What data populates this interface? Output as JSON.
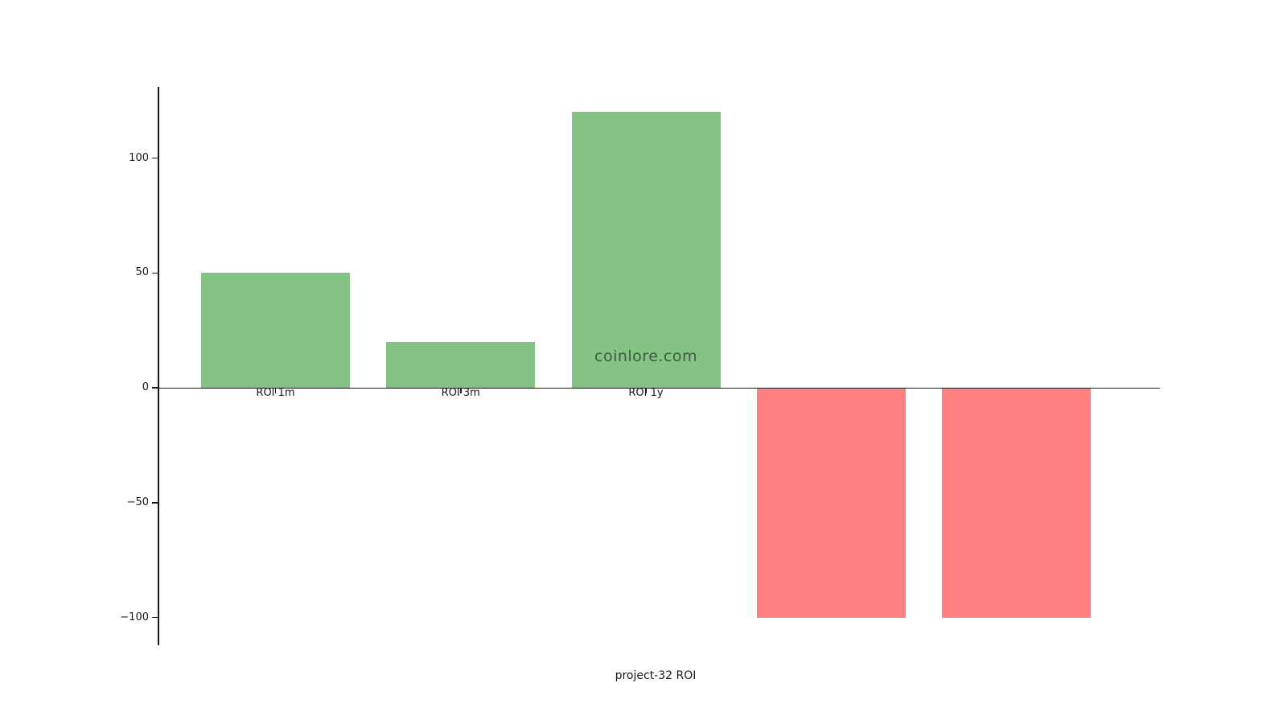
{
  "title": {
    "text": "project-32 ROI"
  },
  "watermark": {
    "text": "coinlore.com",
    "color": "#3f5a43"
  },
  "chart_data": {
    "type": "bar",
    "title": "project-32 ROI",
    "categories": [
      "ROI 1m",
      "ROI 3m",
      "ROI 1y",
      "",
      ""
    ],
    "values": [
      50,
      20,
      120,
      -100,
      -100
    ],
    "xlabel": "",
    "ylabel": "",
    "yticks": [
      100,
      50,
      0,
      -50,
      -100
    ],
    "ylim": [
      -112,
      131
    ],
    "grid": false,
    "legend": null,
    "positive_color": "#84c384",
    "negative_color": "#fd8181",
    "axis_color": "#1a1a1a",
    "background_color": "#ffffff",
    "watermark": "coinlore.com"
  }
}
